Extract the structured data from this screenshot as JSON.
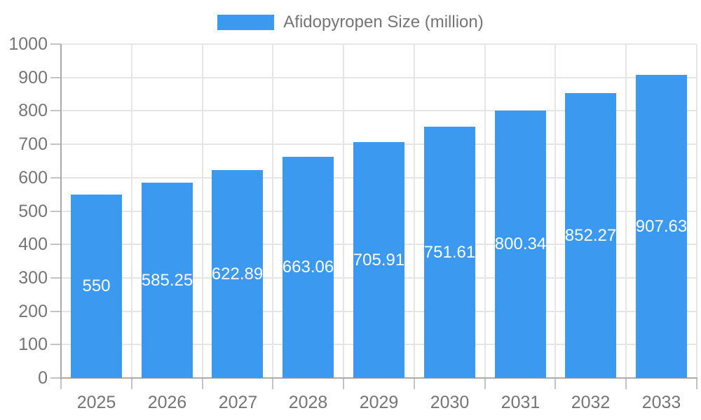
{
  "legend": {
    "label": "Afidopyropen Size (million)"
  },
  "chart_data": {
    "type": "bar",
    "title": "Afidopyropen Size (million)",
    "series_name": "Afidopyropen Size (million)",
    "categories": [
      "2025",
      "2026",
      "2027",
      "2028",
      "2029",
      "2030",
      "2031",
      "2032",
      "2033"
    ],
    "values": [
      550,
      585.25,
      622.89,
      663.06,
      705.91,
      751.61,
      800.34,
      852.27,
      907.63
    ],
    "bar_labels": [
      "550",
      "585.25",
      "622.89",
      "663.06",
      "705.91",
      "751.61",
      "800.34",
      "852.27",
      "907.63"
    ],
    "xlabel": "",
    "ylabel": "",
    "ylim": [
      0,
      1000
    ],
    "ytick_step": 100,
    "ytick_labels": [
      "0",
      "100",
      "200",
      "300",
      "400",
      "500",
      "600",
      "700",
      "800",
      "900",
      "1000"
    ],
    "grid": true,
    "legend_position": "top"
  },
  "colors": {
    "bar": "#3B99F0",
    "grid": "#E5E5E5",
    "axis": "#ABABAB",
    "tick": "#C4C4C4",
    "label": "#757575",
    "bar_label": "#FFFFFF",
    "background": "#FFFFFF"
  }
}
